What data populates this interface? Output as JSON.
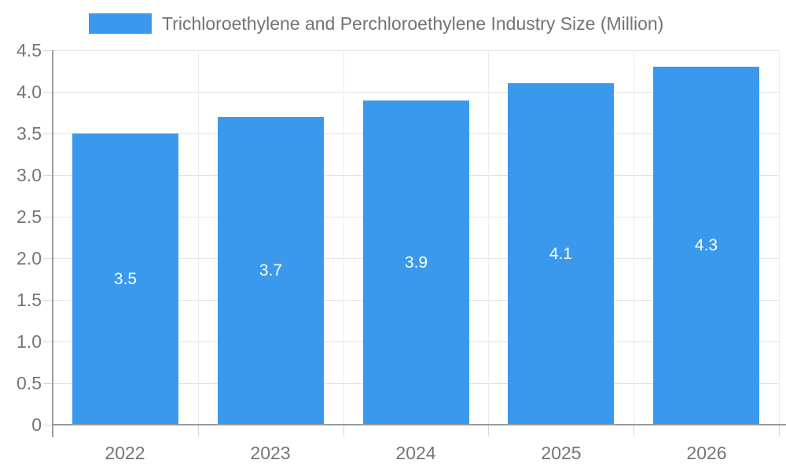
{
  "chart_data": {
    "type": "bar",
    "title": "Trichloroethylene and Perchloroethylene Industry Size (Million)",
    "categories": [
      "2022",
      "2023",
      "2024",
      "2025",
      "2026"
    ],
    "values": [
      3.5,
      3.7,
      3.9,
      4.1,
      4.3
    ],
    "bar_labels": [
      "3.5",
      "3.7",
      "3.9",
      "4.1",
      "4.3"
    ],
    "xlabel": "",
    "ylabel": "",
    "ylim": [
      0,
      4.5
    ],
    "ytick_labels": [
      "0",
      "0.5",
      "1.0",
      "1.5",
      "2.0",
      "2.5",
      "3.0",
      "3.5",
      "4.0",
      "4.5"
    ],
    "grid": "horizontal value gridlines and vertical category-boundary gridlines",
    "legend_position": "top",
    "colors": {
      "bar": "#3A99EC",
      "axis_line": "#9a9a9a",
      "gridline_h": "#e3e3e3",
      "gridline_v": "#ececec",
      "tick": "#d8d8d8",
      "axis_text": "#757575",
      "legend_text": "#737373",
      "bar_label_text": "#ffffff",
      "background": "#ffffff"
    }
  }
}
